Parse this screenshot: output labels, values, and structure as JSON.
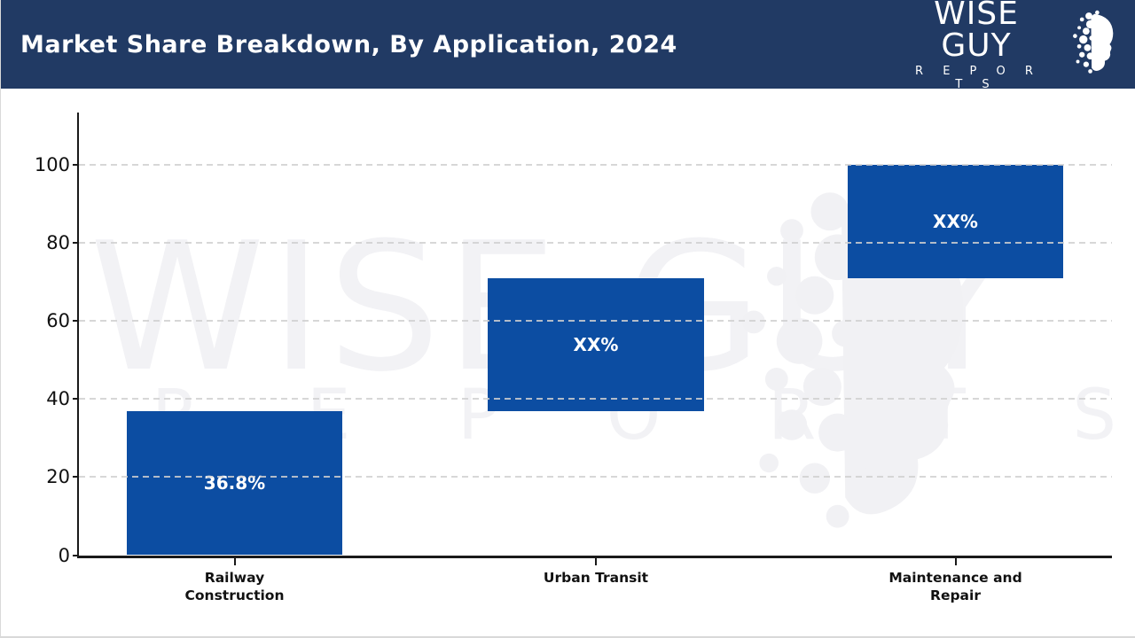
{
  "header": {
    "title": "Market Share Breakdown, By Application, 2024",
    "logo_line1": "WISE GUY",
    "logo_line2": "R E P O R T S"
  },
  "watermark": {
    "line1": "WISE GUY",
    "line2": "R E P O R T S"
  },
  "chart_data": {
    "type": "bar",
    "subtype": "waterfall",
    "title": "Market Share Breakdown, By Application, 2024",
    "categories": [
      "Railway Construction",
      "Urban Transit",
      "Maintenance and Repair"
    ],
    "category_label_lines": [
      [
        "Railway",
        "Construction"
      ],
      [
        "Urban Transit"
      ],
      [
        "Maintenance and",
        "Repair"
      ]
    ],
    "segments": [
      {
        "category": "Railway Construction",
        "start": 0,
        "end": 36.8,
        "label": "36.8%"
      },
      {
        "category": "Urban Transit",
        "start": 36.8,
        "end": 71.0,
        "label": "XX%"
      },
      {
        "category": "Maintenance and Repair",
        "start": 71.0,
        "end": 100.0,
        "label": "XX%"
      }
    ],
    "ylim": [
      0,
      100
    ],
    "yticks": [
      0,
      20,
      40,
      60,
      80,
      100
    ],
    "grid": "horizontal dashed, drawn above bars",
    "legend": "none",
    "bar_color": "#0C4DA2",
    "bar_label_color": "#ffffff",
    "grid_color": "#d0d0d0",
    "axis_color": "#1a1a1a",
    "header_bg_color": "#213A64",
    "watermark_color": "#f2f2f5"
  }
}
